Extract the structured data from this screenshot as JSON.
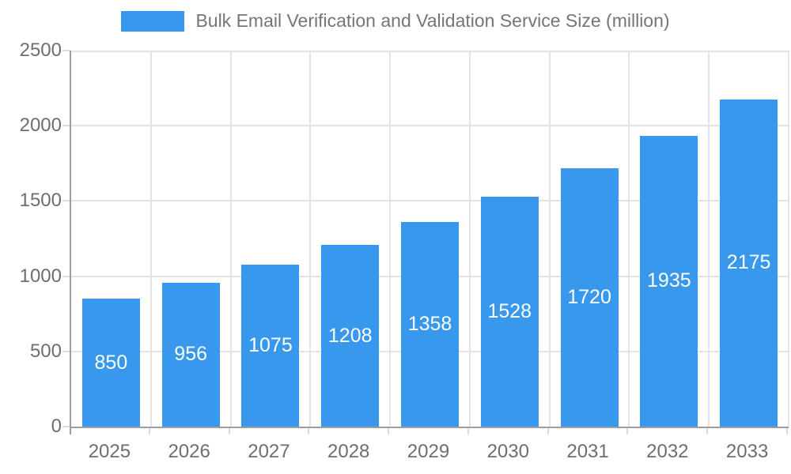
{
  "chart_data": {
    "type": "bar",
    "title": "Bulk Email Verification and Validation Service Size (million)",
    "categories": [
      "2025",
      "2026",
      "2027",
      "2028",
      "2029",
      "2030",
      "2031",
      "2032",
      "2033"
    ],
    "values": [
      850,
      956,
      1075,
      1208,
      1358,
      1528,
      1720,
      1935,
      2175
    ],
    "xlabel": "",
    "ylabel": "",
    "ylim": [
      0,
      2500
    ],
    "yticks": [
      0,
      500,
      1000,
      1500,
      2000,
      2500
    ],
    "grid": true,
    "legend_position": "top",
    "bar_value_labels": true,
    "colors": {
      "bar": "#3899EC",
      "grid": "#E4E4E4",
      "axis": "#9E9E9E",
      "tick": "#DCDCDC",
      "axis_text": "#6E6E6E",
      "legend_text": "#757575",
      "bar_label_text": "#FFFFFF"
    }
  }
}
